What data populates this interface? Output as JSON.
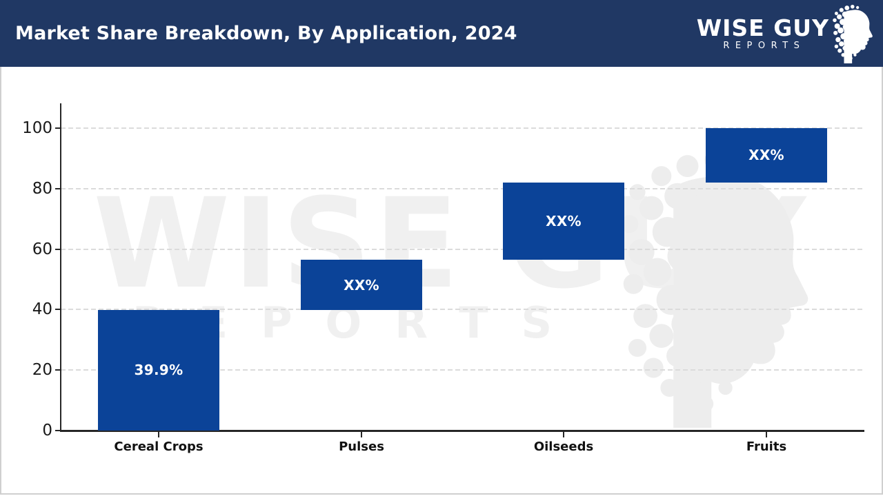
{
  "header": {
    "title": "Market Share Breakdown, By Application, 2024",
    "brand": {
      "name": "WISE GUY",
      "subtitle": "REPORTS"
    }
  },
  "watermark": {
    "name": "WISE GUY",
    "subtitle": "REPORTS"
  },
  "chart_data": {
    "type": "bar",
    "subtype": "waterfall",
    "title": "Market Share Breakdown, By Application, 2024",
    "categories": [
      "Cereal Crops",
      "Pulses",
      "Oilseeds",
      "Fruits"
    ],
    "segments": [
      {
        "category": "Cereal Crops",
        "start": 0,
        "end": 39.9,
        "label": "39.9%"
      },
      {
        "category": "Pulses",
        "start": 39.9,
        "end": 56.4,
        "label": "XX%"
      },
      {
        "category": "Oilseeds",
        "start": 56.4,
        "end": 82.1,
        "label": "XX%"
      },
      {
        "category": "Fruits",
        "start": 82.1,
        "end": 100,
        "label": "XX%"
      }
    ],
    "xlabel": "",
    "ylabel": "",
    "ylim": [
      0,
      100
    ],
    "yticks": [
      0,
      20,
      40,
      60,
      80,
      100
    ],
    "grid": "horizontal-dashed",
    "legend": "none",
    "bar_color": "#0b4398",
    "bar_label_color": "#ffffff",
    "axis_color": "#262626",
    "grid_color": "#dbdbdb"
  },
  "colors": {
    "header_bg": "#203864",
    "watermark": "#f0f0f0",
    "text_on_header": "#ffffff"
  }
}
